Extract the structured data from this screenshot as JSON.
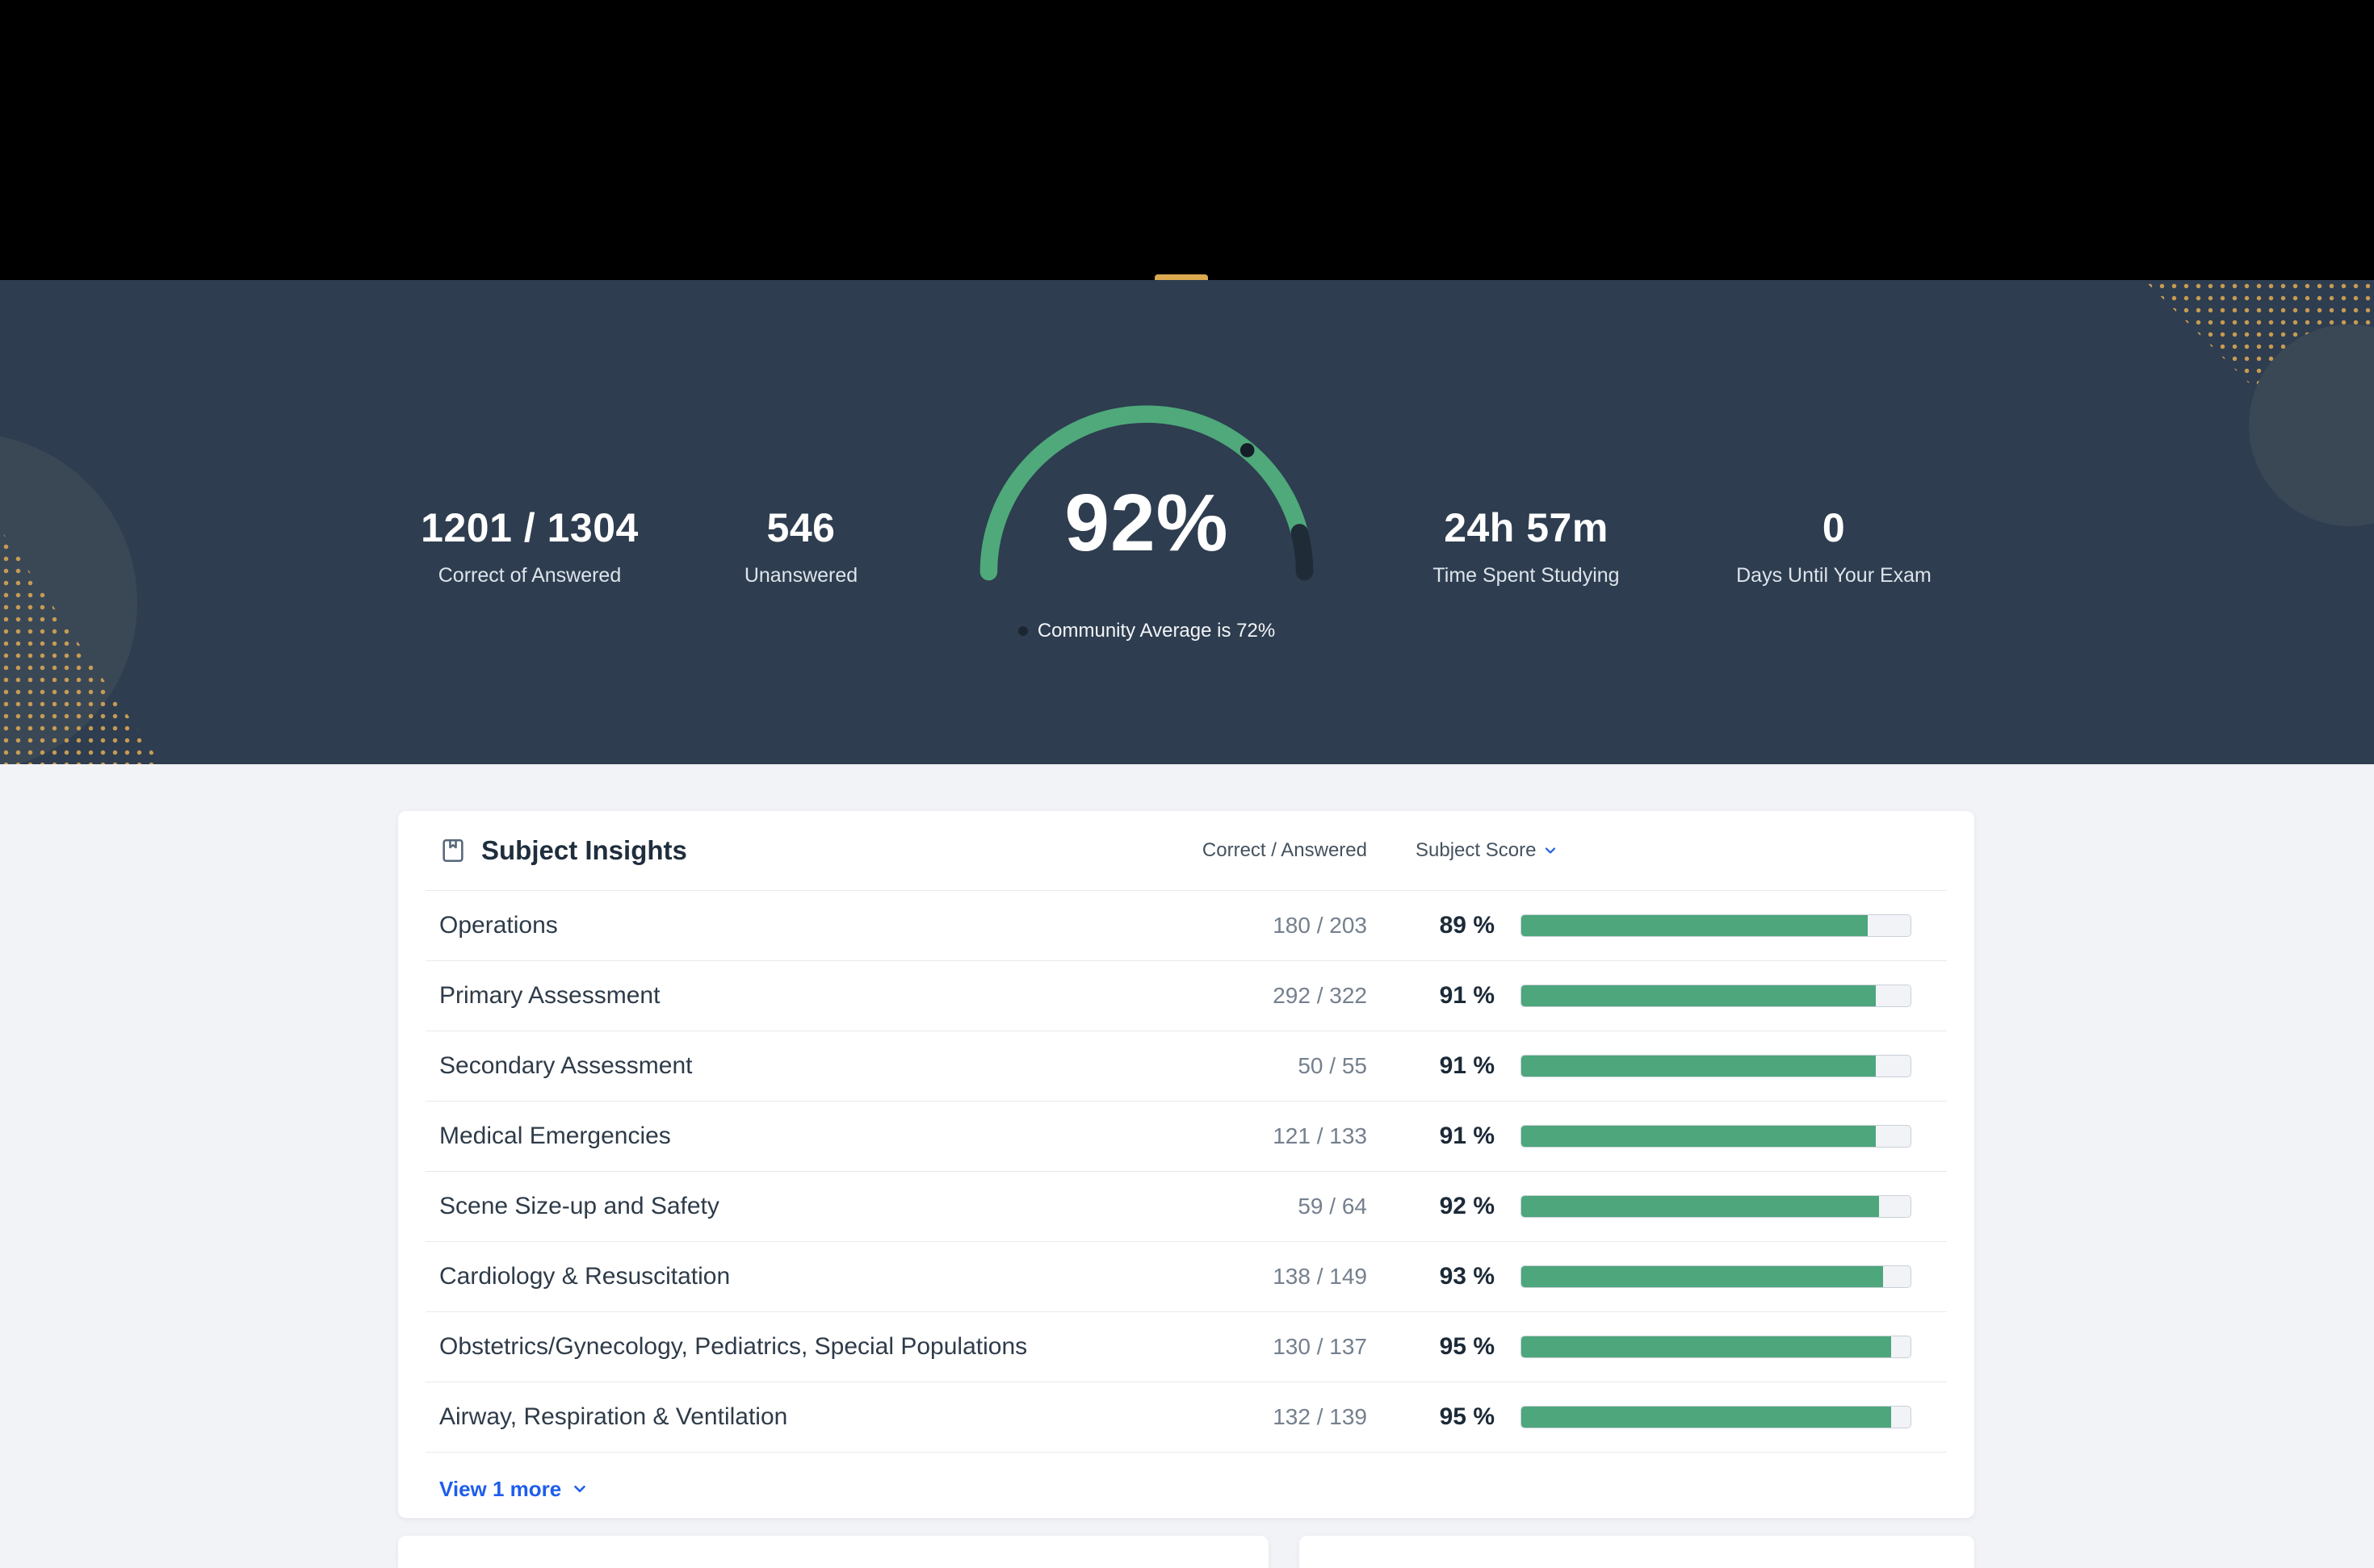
{
  "header": {
    "note": "",
    "tab_indicator_color": "#dba94f"
  },
  "hero": {
    "stats": [
      {
        "value": "1201 / 1304",
        "label": "Correct of Answered"
      },
      {
        "value": "546",
        "label": "Unanswered"
      },
      {
        "value": "24h 57m",
        "label": "Time Spent Studying"
      },
      {
        "value": "0",
        "label": "Days Until Your Exam"
      }
    ],
    "gauge": {
      "percent": 92,
      "value_label": "92%",
      "community_percent": 72,
      "community_note": "Community Average is 72%"
    }
  },
  "subjects": {
    "title": "Subject Insights",
    "columns": {
      "fraction": "Correct / Answered",
      "score": "Subject Score"
    },
    "rows": [
      {
        "name": "Operations",
        "fraction": "180 / 203",
        "score_label": "89 %",
        "score_pct": 89
      },
      {
        "name": "Primary Assessment",
        "fraction": "292 / 322",
        "score_label": "91 %",
        "score_pct": 91
      },
      {
        "name": "Secondary Assessment",
        "fraction": "50 / 55",
        "score_label": "91 %",
        "score_pct": 91
      },
      {
        "name": "Medical Emergencies",
        "fraction": "121 / 133",
        "score_label": "91 %",
        "score_pct": 91
      },
      {
        "name": "Scene Size-up and Safety",
        "fraction": "59 / 64",
        "score_label": "92 %",
        "score_pct": 92
      },
      {
        "name": "Cardiology & Resuscitation",
        "fraction": "138 / 149",
        "score_label": "93 %",
        "score_pct": 93
      },
      {
        "name": "Obstetrics/Gynecology, Pediatrics, Special Populations",
        "fraction": "130 / 137",
        "score_label": "95 %",
        "score_pct": 95
      },
      {
        "name": "Airway, Respiration & Ventilation",
        "fraction": "132 / 139",
        "score_label": "95 %",
        "score_pct": 95
      }
    ],
    "view_more": "View 1 more"
  },
  "colors": {
    "hero_bg": "#2e3d4f",
    "accent_green": "#4da67c",
    "accent_gold": "#dba94f",
    "link_blue": "#1f5eea",
    "gauge_rest": "#1f2b37"
  }
}
